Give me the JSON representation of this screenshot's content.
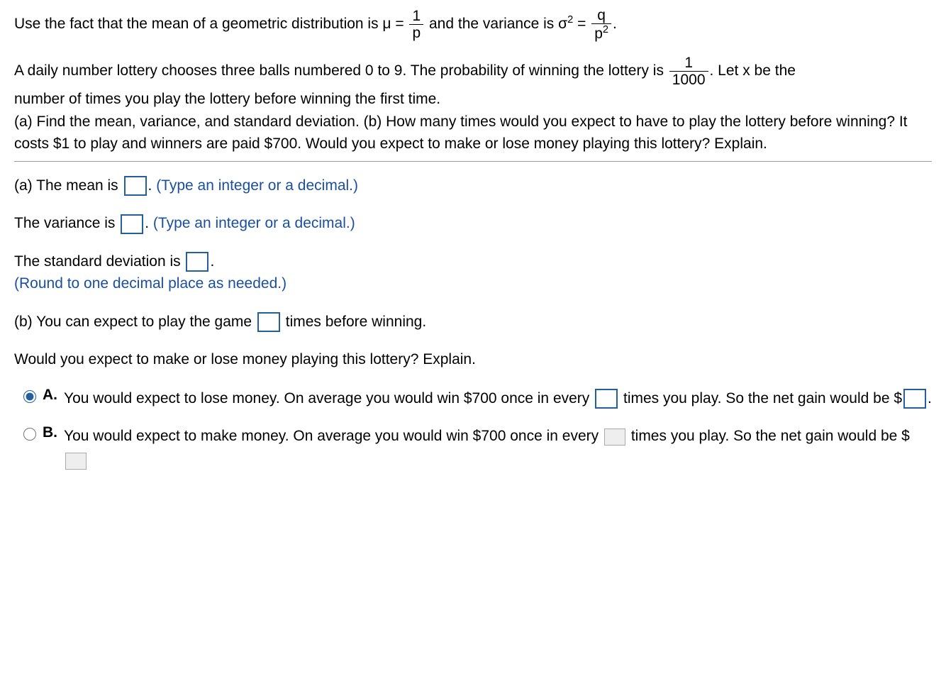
{
  "intro": {
    "pre_mu": "Use the fact that the mean of a geometric distribution is μ = ",
    "frac_mu_num": "1",
    "frac_mu_den": "p",
    "between": " and the variance is σ",
    "sigma_sup": "2",
    "equals": " = ",
    "frac_var_num": "q",
    "frac_var_den_base": "p",
    "frac_var_den_sup": "2",
    "period": "."
  },
  "lottery": {
    "line1_pre": "A daily number lottery chooses three balls numbered 0 to 9. The probability of winning the lottery is ",
    "frac_num": "1",
    "frac_den": "1000",
    "line1_post": ". Let x be the",
    "line2": "number of times you play the lottery before winning the first time.",
    "line3": "(a) Find the mean, variance, and standard deviation. (b) How many times would you expect to have to play the lottery before winning? It costs $1 to play and winners are paid $700. Would you expect to make or lose money playing this lottery? Explain."
  },
  "answers": {
    "a_mean_pre": "(a) The mean is ",
    "a_mean_post": ". ",
    "a_mean_hint": "(Type an integer or a decimal.)",
    "variance_pre": "The variance is ",
    "variance_post": ". ",
    "variance_hint": "(Type an integer or a decimal.)",
    "sd_pre": "The standard deviation is ",
    "sd_post": ".",
    "sd_hint": "(Round to one decimal place as needed.)",
    "b_expect_pre": "(b) You can expect to play the game ",
    "b_expect_post": " times before winning.",
    "b_question": "Would you expect to make or lose money playing this lottery? Explain."
  },
  "choices": {
    "A": {
      "letter": "A.",
      "text_pre": "You would expect to lose money. On average you would win $700 once in every ",
      "text_mid": " times you play. So the net gain would be $",
      "text_post": "."
    },
    "B": {
      "letter": "B.",
      "text_pre": "You would expect to make money. On average you would win $700 once in every ",
      "text_mid": " times you play. So the net gain would be $",
      "text_post": ""
    }
  }
}
